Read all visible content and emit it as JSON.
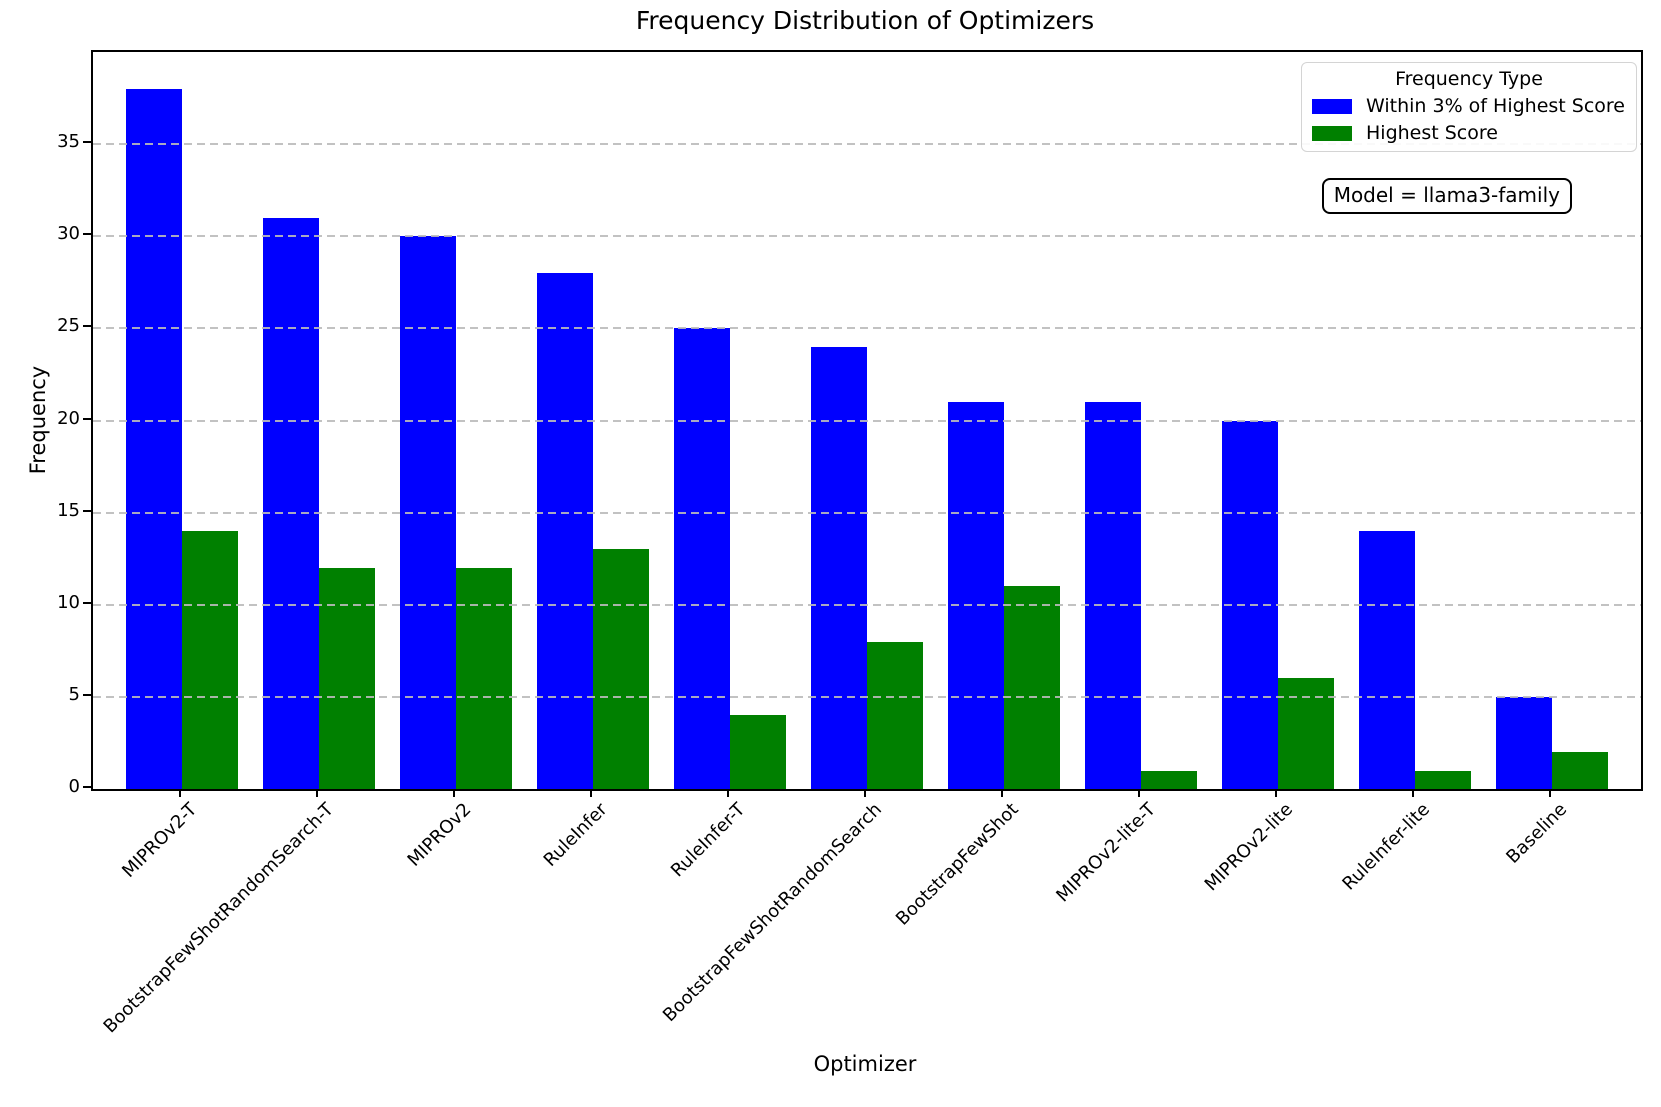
{
  "chart": {
    "title": "Frequency Distribution of Optimizers",
    "xlabel": "Optimizer",
    "ylabel": "Frequency",
    "annotation": "Model = llama3-family",
    "legend": {
      "title": "Frequency Type",
      "entries": [
        {
          "label": "Within 3% of Highest Score",
          "color": "#0000ff"
        },
        {
          "label": "Highest Score",
          "color": "#008000"
        }
      ]
    }
  },
  "chart_data": {
    "type": "bar",
    "title": "Frequency Distribution of Optimizers",
    "xlabel": "Optimizer",
    "ylabel": "Frequency",
    "categories": [
      "MIPROv2-T",
      "BootstrapFewShotRandomSearch-T",
      "MIPROv2",
      "RuleInfer",
      "RuleInfer-T",
      "BootstrapFewShotRandomSearch",
      "BootstrapFewShot",
      "MIPROv2-lite-T",
      "MIPROv2-lite",
      "RuleInfer-lite",
      "Baseline"
    ],
    "series": [
      {
        "name": "Within 3% of Highest Score",
        "color": "#0000ff",
        "values": [
          38,
          31,
          30,
          28,
          25,
          24,
          21,
          21,
          20,
          14,
          5
        ]
      },
      {
        "name": "Highest Score",
        "color": "#008000",
        "values": [
          14,
          12,
          12,
          13,
          4,
          8,
          11,
          1,
          6,
          1,
          2
        ]
      }
    ],
    "ylim": [
      0,
      40
    ],
    "yticks": [
      0,
      5,
      10,
      15,
      20,
      25,
      30,
      35
    ],
    "grid": "horizontal-dashed",
    "legend_title": "Frequency Type",
    "legend_position": "upper right",
    "annotation": "Model = llama3-family"
  }
}
